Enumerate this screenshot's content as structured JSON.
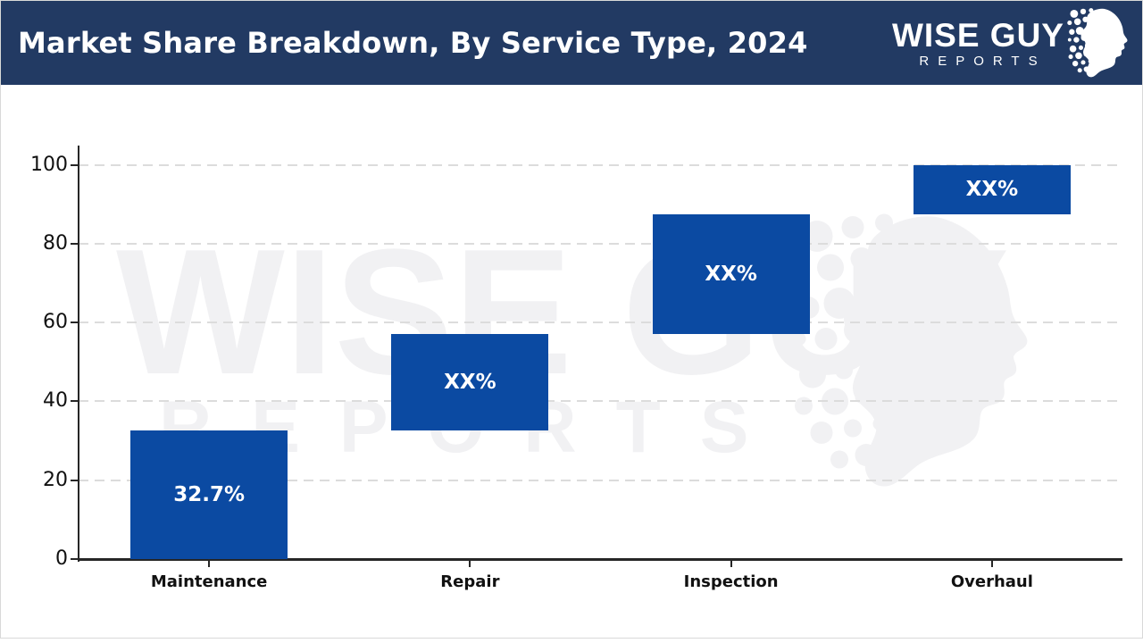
{
  "header": {
    "title": "Market Share Breakdown, By Service Type, 2024",
    "background_color": "#223a63",
    "title_color": "#ffffff"
  },
  "brand": {
    "wise_guy": "WISE GUY",
    "reports": "REPORTS",
    "logo_icon": "dotted-head-profile"
  },
  "chart_data": {
    "type": "bar",
    "subtype": "waterfall",
    "title": "Market Share Breakdown, By Service Type, 2024",
    "categories": [
      "Maintenance",
      "Repair",
      "Inspection",
      "Overhaul"
    ],
    "segments": [
      {
        "category": "Maintenance",
        "start": 0,
        "end": 32.7,
        "label": "32.7%"
      },
      {
        "category": "Repair",
        "start": 32.7,
        "end": 57.0,
        "label": "XX%"
      },
      {
        "category": "Inspection",
        "start": 57.0,
        "end": 87.4,
        "label": "XX%"
      },
      {
        "category": "Overhaul",
        "start": 87.4,
        "end": 100.0,
        "label": "XX%"
      }
    ],
    "yticks": [
      0,
      20,
      40,
      60,
      80,
      100
    ],
    "ylim": [
      0,
      105
    ],
    "xlabel": "",
    "ylabel": "",
    "legend": "none",
    "grid": {
      "horizontal": true,
      "style": "dashed",
      "color": "#dcdcdc"
    },
    "bar_color": "#0b4aa2",
    "bar_label_color": "#ffffff",
    "axis_color": "#262626"
  },
  "watermark": {
    "text_line1": "WISE GUY",
    "text_line2": "REPORTS",
    "color": "#f1f1f3"
  }
}
